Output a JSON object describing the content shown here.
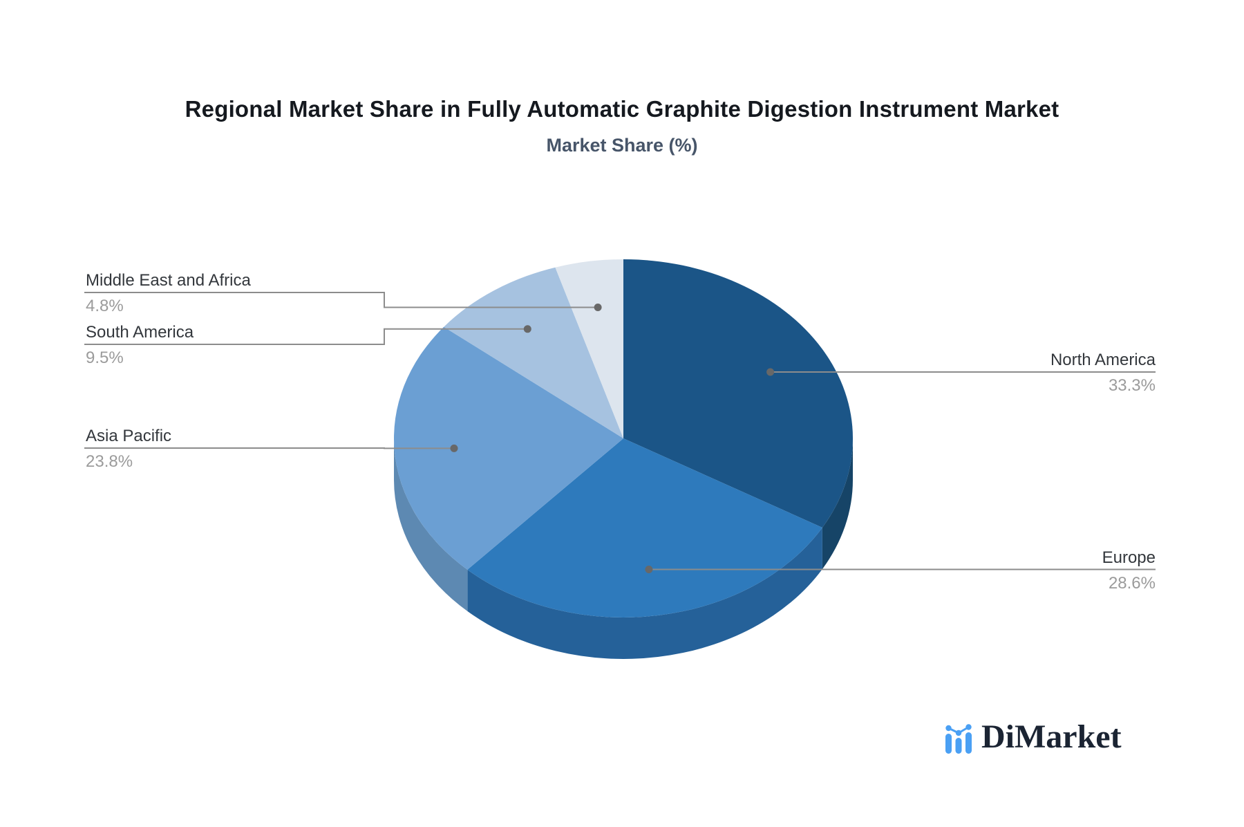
{
  "title": "Regional Market Share in Fully Automatic Graphite Digestion Instrument Market",
  "subtitle": "Market Share (%)",
  "chart_data": {
    "type": "pie",
    "style": "3d",
    "title": "Regional Market Share in Fully Automatic Graphite Digestion Instrument Market",
    "subtitle": "Market Share (%)",
    "unit": "%",
    "start_angle_deg": 0,
    "direction": "clockwise",
    "legend": "none",
    "labels": [
      "North America",
      "Europe",
      "Asia Pacific",
      "South America",
      "Middle East and Africa"
    ],
    "values": [
      33.3,
      28.6,
      23.8,
      9.5,
      4.8
    ],
    "display_percents": [
      "33.3%",
      "28.6%",
      "23.8%",
      "9.5%",
      "4.8%"
    ],
    "slice_colors": [
      "#1b5587",
      "#2e7abc",
      "#6b9fd3",
      "#a6c2e0",
      "#dde5ee"
    ],
    "side_colors": [
      "#164467",
      "#256199",
      "#5d89b2",
      "#8fa9c4",
      "#c3cdd8"
    ]
  },
  "callouts": [
    {
      "name": "North America",
      "percent": "33.3%",
      "side": "right"
    },
    {
      "name": "Europe",
      "percent": "28.6%",
      "side": "right"
    },
    {
      "name": "Asia Pacific",
      "percent": "23.8%",
      "side": "left"
    },
    {
      "name": "South America",
      "percent": "9.5%",
      "side": "left"
    },
    {
      "name": "Middle East and Africa",
      "percent": "4.8%",
      "side": "left"
    }
  ],
  "colors": {
    "background": "#ffffff",
    "title": "#15191f",
    "subtitle": "#475569",
    "label_text": "#33373c",
    "percent_text": "#9b9b9b",
    "leader_line": "#8c8c8c",
    "leader_dot": "#686868",
    "brand_text": "#1b2433",
    "brand_icon": "#4aa0f4"
  },
  "brand": {
    "name": "DiMarket",
    "icon": "bar-line-chart-logo-icon"
  }
}
